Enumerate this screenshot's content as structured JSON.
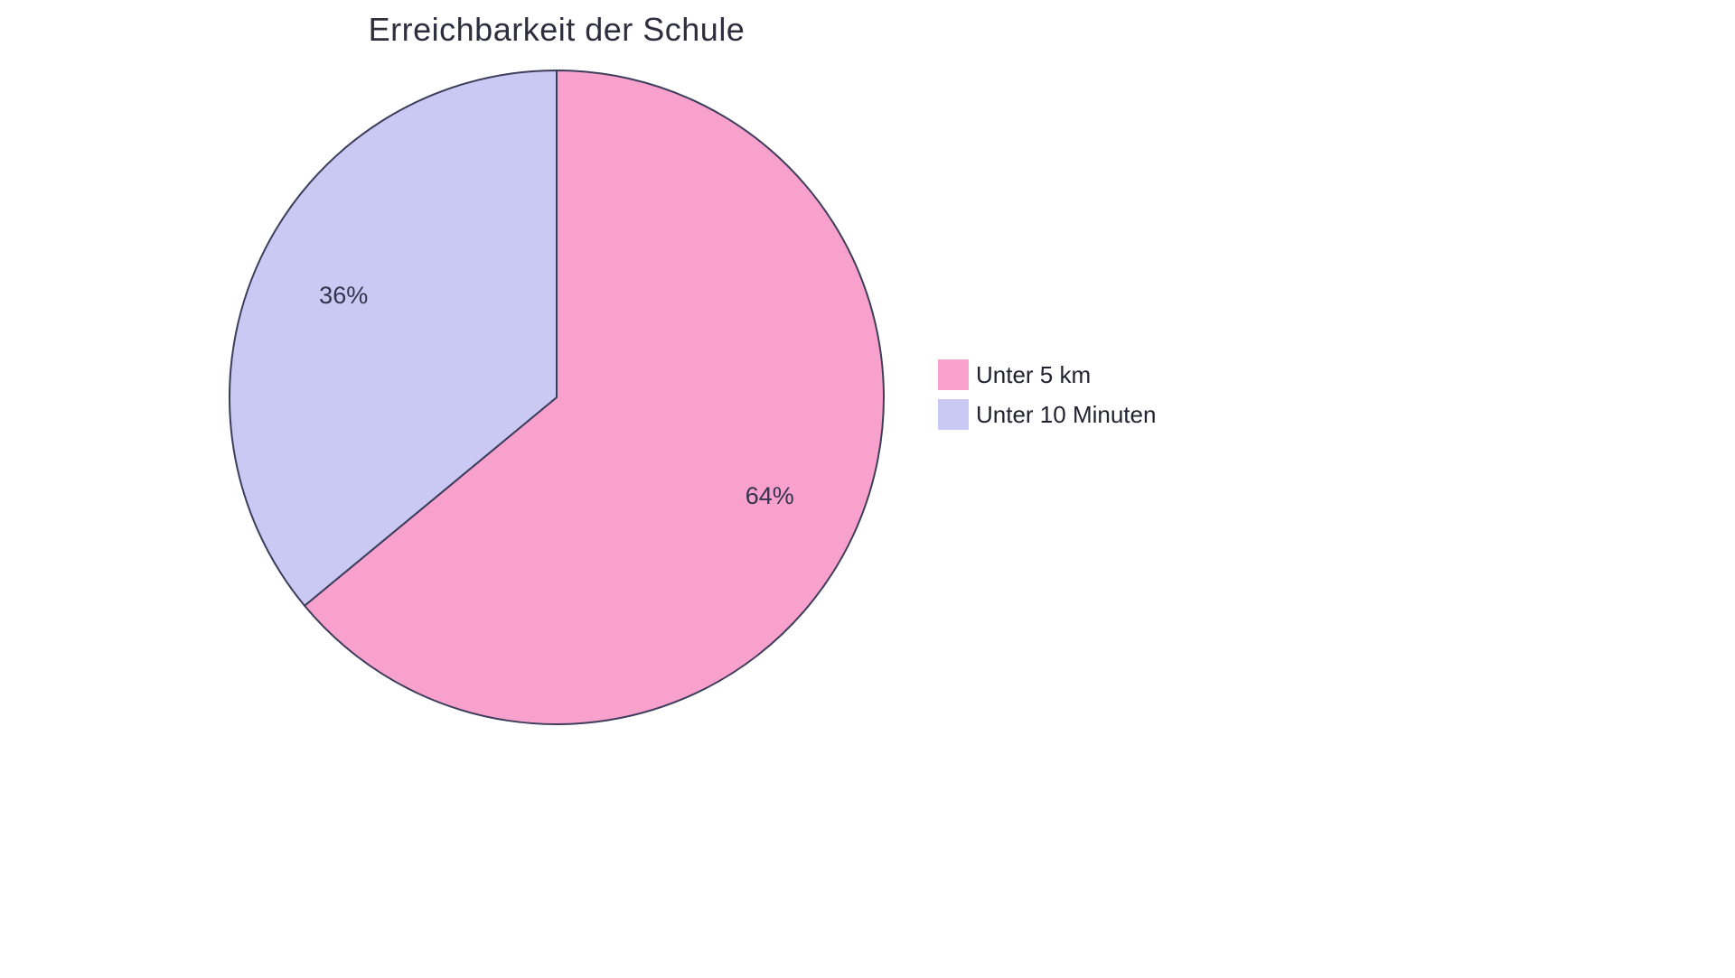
{
  "chart_data": {
    "type": "pie",
    "title": "Erreichbarkeit der Schule",
    "slices": [
      {
        "label": "Unter 5 km",
        "value": 64,
        "percent_label": "64%",
        "color": "#F9A1CD"
      },
      {
        "label": "Unter 10 Minuten",
        "value": 36,
        "percent_label": "36%",
        "color": "#C9C9F4"
      }
    ],
    "start_angle_deg": 0,
    "direction": "clockwise",
    "stroke_color": "#3d3d5c",
    "label_color": "#33334d",
    "legend_position": "right",
    "background": "#ffffff"
  }
}
